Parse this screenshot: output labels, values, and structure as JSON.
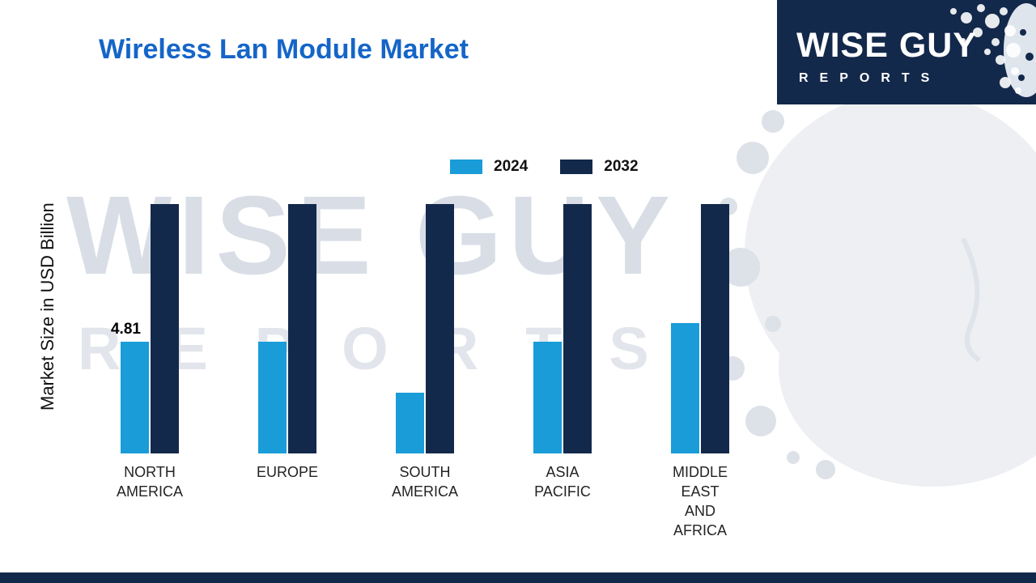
{
  "header": {
    "title": "Wireless Lan Module Market"
  },
  "logo": {
    "line1": "WISE GUY",
    "line2": "REPORTS"
  },
  "watermark": {
    "line1": "WISE GUY",
    "line2": "REPORTS"
  },
  "chart_data": {
    "type": "bar",
    "title": "Wireless Lan Module Market",
    "ylabel": "Market Size in USD Billion",
    "xlabel": "",
    "categories": [
      "NORTH AMERICA",
      "EUROPE",
      "SOUTH AMERICA",
      "ASIA PACIFIC",
      "MIDDLE EAST AND AFRICA"
    ],
    "category_label_lines": [
      [
        "NORTH",
        "AMERICA"
      ],
      [
        "EUROPE"
      ],
      [
        "SOUTH",
        "AMERICA"
      ],
      [
        "ASIA",
        "PACIFIC"
      ],
      [
        "MIDDLE",
        "EAST",
        "AND",
        "AFRICA"
      ]
    ],
    "series": [
      {
        "name": "2024",
        "color": "#1a9cd8",
        "values": [
          4.81,
          4.81,
          2.6,
          4.81,
          5.6
        ]
      },
      {
        "name": "2032",
        "color": "#13294b",
        "values": [
          10.7,
          10.7,
          10.7,
          10.7,
          10.7
        ]
      }
    ],
    "data_labels": [
      {
        "series": "2024",
        "category_index": 0,
        "text": "4.81"
      }
    ],
    "ylim": [
      0,
      10.7
    ],
    "grid": false,
    "legend_position": "top"
  },
  "colors": {
    "accent_blue": "#1a9cd8",
    "navy": "#13294b",
    "title_blue": "#1565c8",
    "watermark_gray": "#d9dee6"
  }
}
